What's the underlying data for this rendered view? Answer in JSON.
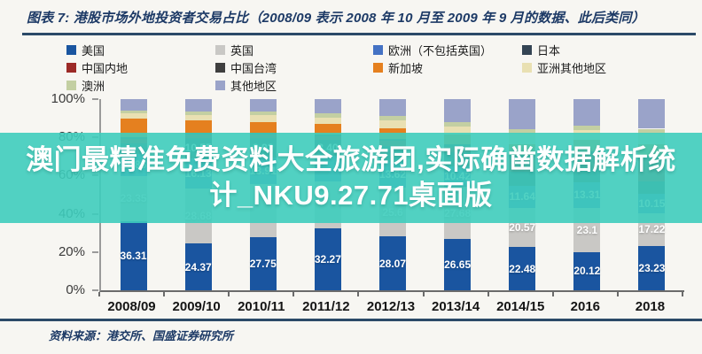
{
  "title": "图表 7: 港股市场外地投资者交易占比（2008/09 表示 2008 年 10 月至 2009 年 9 月的数据、此后类同）",
  "source_note": "资料来源：港交所、国盛证券研究所",
  "watermark": {
    "full_text": "澳门最精准免费资料大全旅游团,实际确凿数据解析统计_NKU9.27.71桌面版",
    "lines": [
      "澳门最精准免费资料大全旅游团,实际确凿数据解析统",
      "计_NKU9.27.71桌面版"
    ],
    "band_color": "#3ecdbd",
    "text_color": "#ffffff"
  },
  "chart_data": {
    "type": "bar",
    "stacked": true,
    "unit": "%",
    "title": "港股市场外地投资者交易占比",
    "categories": [
      "2008/09",
      "2009/10",
      "2010/11",
      "2011/12",
      "2012/13",
      "2013/14",
      "2014/15",
      "2016",
      "2018"
    ],
    "y_ticks": [
      "100%",
      "80%",
      "60%",
      "40%",
      "20%",
      "0%"
    ],
    "ylim": [
      0,
      100
    ],
    "legend_position": "top",
    "grid": false,
    "series": [
      {
        "name": "美国",
        "color": "#1a55a0",
        "values": [
          36.31,
          24.37,
          27.75,
          32.27,
          28.07,
          26.65,
          22.48,
          20.12,
          23.23
        ],
        "labels": [
          "36.31",
          "24.37",
          "27.75",
          "32.27",
          "28.07",
          "26.65",
          "22.48",
          "20.12",
          "23.23"
        ]
      },
      {
        "name": "英国",
        "color": "#c9c8c5",
        "values": [
          23.35,
          28.68,
          28.0,
          24.5,
          25.6,
          27.68,
          20.57,
          23.1,
          17.22
        ],
        "labels": [
          "23.35",
          "28.68",
          null,
          null,
          "25.6",
          "27.68",
          "20.57",
          "23.1",
          "17.22"
        ]
      },
      {
        "name": "欧洲（不包括英国）",
        "color": "#4472c4",
        "values": [
          11.86,
          16.13,
          13.91,
          13.5,
          13.62,
          10.42,
          11.64,
          13.31,
          10.15
        ],
        "labels": [
          "11.86",
          "16.13",
          "13.91",
          null,
          "13.62",
          "10.42",
          "11.64",
          "13.31",
          "10.15"
        ]
      },
      {
        "name": "日本",
        "color": "#344454",
        "values": [
          5.5,
          10.55,
          9.92,
          8.4,
          8.4,
          7.5,
          7.2,
          7.0,
          6.3
        ],
        "labels": [
          null,
          "10.55",
          "9.92",
          "8.40",
          null,
          null,
          null,
          null,
          null
        ]
      },
      {
        "name": "中国内地",
        "color": "#9c2a27",
        "values": [
          2.3,
          1.8,
          2.0,
          2.0,
          2.5,
          2.8,
          7.5,
          7.8,
          11.5
        ],
        "labels": [
          null,
          null,
          null,
          null,
          null,
          null,
          null,
          null,
          null
        ]
      },
      {
        "name": "中国台湾",
        "color": "#3f3f3f",
        "values": [
          1.0,
          0.8,
          1.0,
          1.0,
          1.2,
          1.2,
          1.4,
          1.4,
          1.4
        ],
        "labels": [
          null,
          null,
          null,
          null,
          null,
          null,
          null,
          null,
          null
        ]
      },
      {
        "name": "新加坡",
        "color": "#e5801f",
        "values": [
          9.5,
          6.5,
          5.6,
          5.2,
          5.4,
          5.2,
          5.8,
          6.0,
          6.6
        ],
        "labels": [
          null,
          null,
          null,
          null,
          null,
          null,
          null,
          null,
          null
        ]
      },
      {
        "name": "亚洲其他地区",
        "color": "#e9e0b2",
        "values": [
          3.0,
          3.0,
          3.4,
          3.6,
          4.2,
          4.4,
          5.2,
          5.0,
          5.6
        ],
        "labels": [
          null,
          null,
          null,
          null,
          null,
          null,
          null,
          null,
          null
        ]
      },
      {
        "name": "澳洲",
        "color": "#c3cfa2",
        "values": [
          1.2,
          1.5,
          1.8,
          2.0,
          2.2,
          2.2,
          2.4,
          2.4,
          2.5
        ],
        "labels": [
          null,
          null,
          null,
          null,
          null,
          null,
          null,
          null,
          null
        ]
      },
      {
        "name": "其他地区",
        "color": "#9aa3c9",
        "values": [
          6.0,
          6.6,
          6.6,
          7.4,
          8.8,
          11.9,
          15.8,
          13.9,
          15.5
        ],
        "labels": [
          null,
          null,
          null,
          null,
          null,
          null,
          null,
          null,
          null
        ]
      }
    ]
  }
}
